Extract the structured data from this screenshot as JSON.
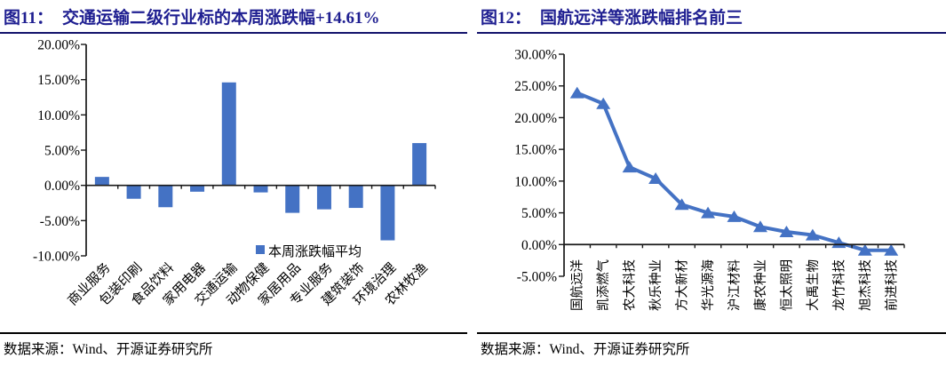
{
  "figures": [
    {
      "label": "图11：",
      "title": "交通运输二级行业标的本周涨跌幅+14.61%",
      "source": "数据来源：Wind、开源证券研究所"
    },
    {
      "label": "图12：",
      "title": "国航远洋等涨跌幅排名前三",
      "source": "数据来源：Wind、开源证券研究所"
    }
  ],
  "colors": {
    "series_blue": "#4472C4",
    "title_navy": "#1F1F91",
    "axis_black": "#1a1a1a"
  },
  "chart_data": [
    {
      "type": "bar",
      "title": "交通运输二级行业标的本周涨跌幅+14.61%",
      "legend": "本周涨跌幅平均",
      "legend_position": "bottom-center",
      "categories": [
        "商业服务",
        "包装印刷",
        "食品饮料",
        "家用电器",
        "交通运输",
        "动物保健",
        "家居用品",
        "专业服务",
        "建筑装饰",
        "环境治理",
        "农林牧渔"
      ],
      "values": [
        1.2,
        -1.9,
        -3.1,
        -0.9,
        14.61,
        -1.0,
        -3.9,
        -3.4,
        -3.2,
        -7.8,
        6.0
      ],
      "xlabel": "",
      "ylabel": "",
      "ylim": [
        -10,
        20
      ],
      "ytick_step": 5,
      "ytick_format": "0.00%",
      "grid": false,
      "color": "#4472C4"
    },
    {
      "type": "line",
      "title": "国航远洋等涨跌幅排名前三",
      "marker": "triangle-up",
      "categories": [
        "国航远洋",
        "凯添燃气",
        "农大科技",
        "秋乐种业",
        "方大新材",
        "华光源海",
        "沪江材料",
        "康农种业",
        "恒太照明",
        "大禹生物",
        "龙竹科技",
        "旭杰科技",
        "前进科技"
      ],
      "values": [
        23.9,
        22.2,
        12.2,
        10.4,
        6.3,
        5.0,
        4.4,
        2.8,
        2.0,
        1.5,
        0.3,
        -0.9,
        -0.9
      ],
      "xlabel": "",
      "ylabel": "",
      "ylim": [
        -5,
        30
      ],
      "ytick_step": 5,
      "ytick_format": "0.00%",
      "grid": false,
      "color": "#4472C4"
    }
  ]
}
